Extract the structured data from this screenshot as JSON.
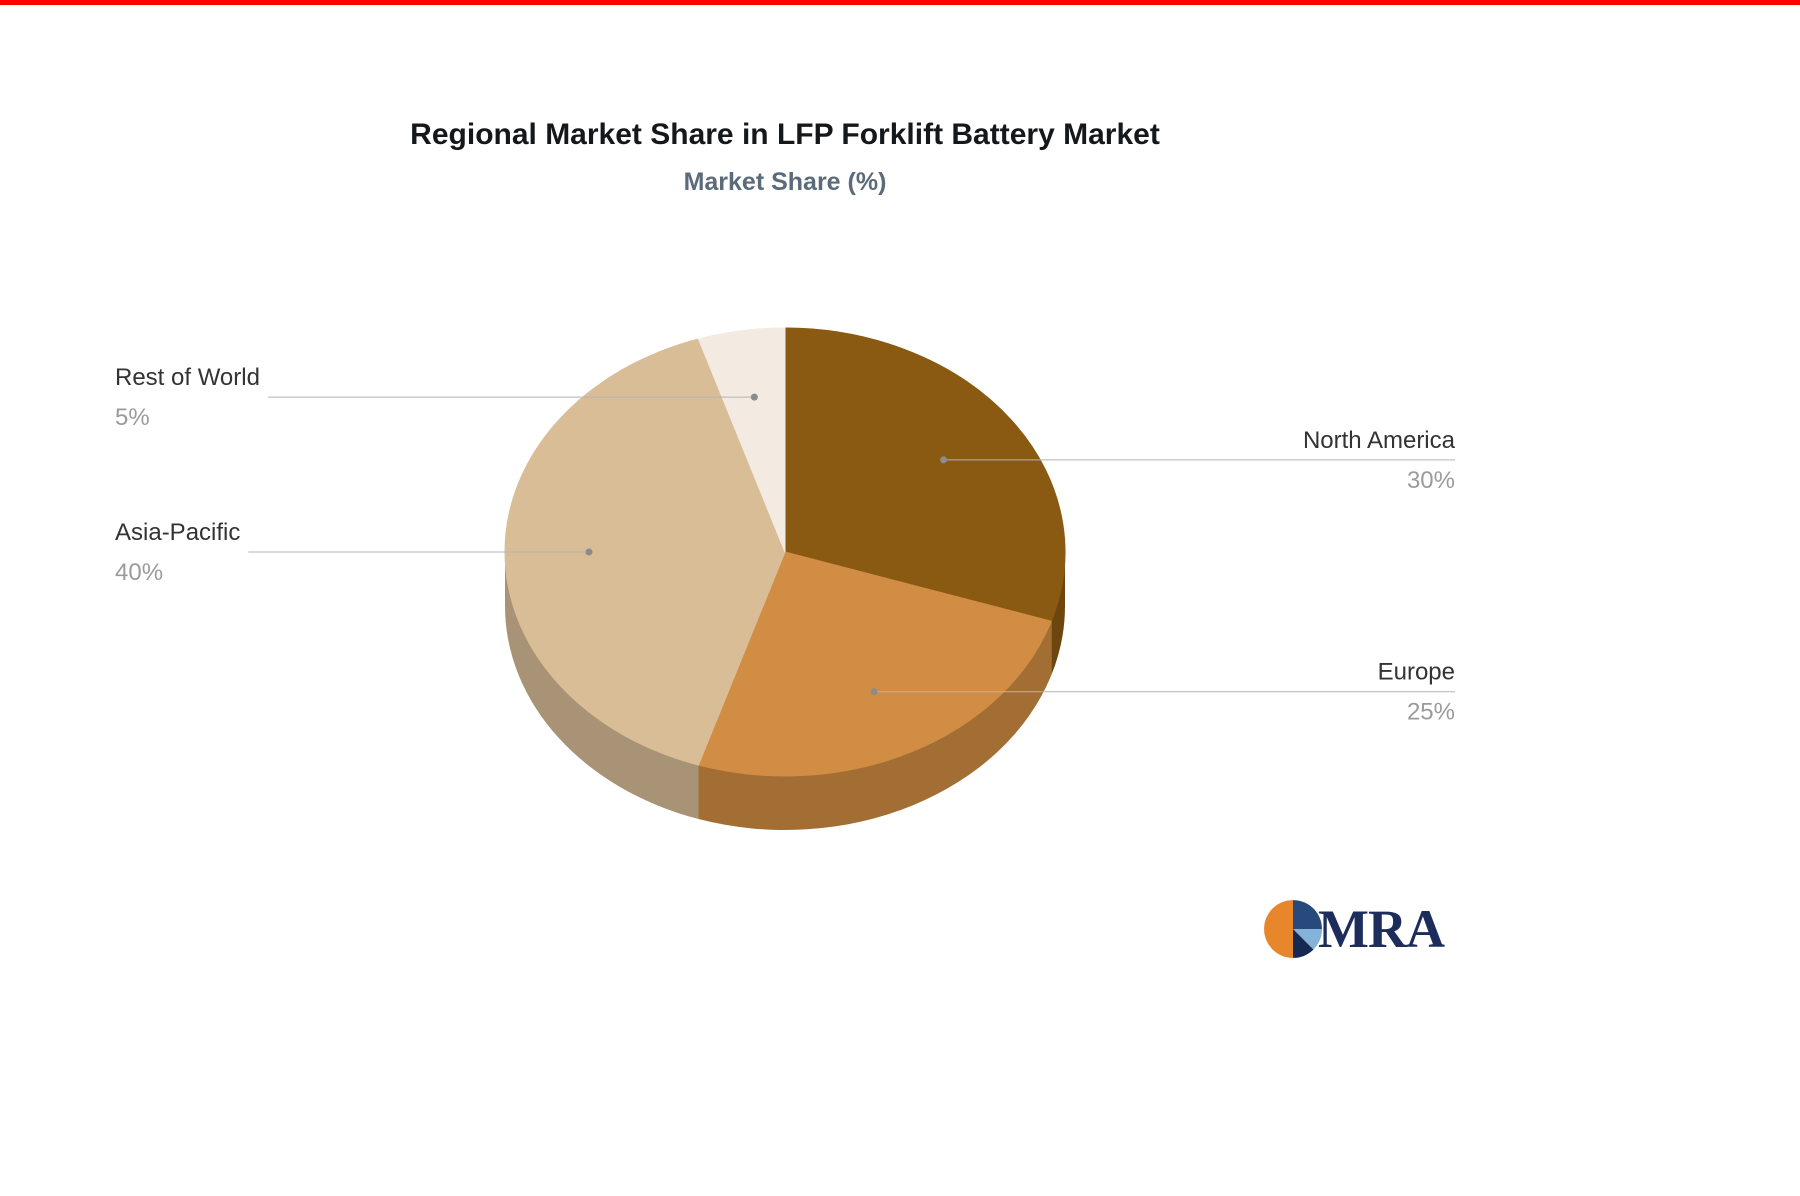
{
  "page": {
    "top_bar_color": "#fe0202",
    "background_color": "#ffffff"
  },
  "chart_data": {
    "type": "pie",
    "title": "Regional Market Share in LFP Forklift Battery Market",
    "subtitle": "Market Share (%)",
    "unit": "%",
    "effect": "3d",
    "legend": "none",
    "label_style": "callout lines with name above and percent below",
    "slices": [
      {
        "label": "North America",
        "value": 30,
        "display_value": "30%",
        "color": "#8a5a12"
      },
      {
        "label": "Europe",
        "value": 25,
        "display_value": "25%",
        "color": "#d18d43"
      },
      {
        "label": "Asia-Pacific",
        "value": 40,
        "display_value": "40%",
        "color": "#d9bd97"
      },
      {
        "label": "Rest of World",
        "value": 5,
        "display_value": "5%",
        "color": "#f3eae2"
      }
    ],
    "text_colors": {
      "name": "#333333",
      "value": "#9b9b9b",
      "title": "#15181b",
      "subtitle": "#5b6b7a"
    }
  },
  "logo": {
    "text": "MRA",
    "text_color": "#1c2c5b",
    "mark_colors": {
      "orange": "#e8862c",
      "blue_dark": "#27497c",
      "blue_light": "#85b2d8",
      "navy": "#152a52"
    }
  }
}
